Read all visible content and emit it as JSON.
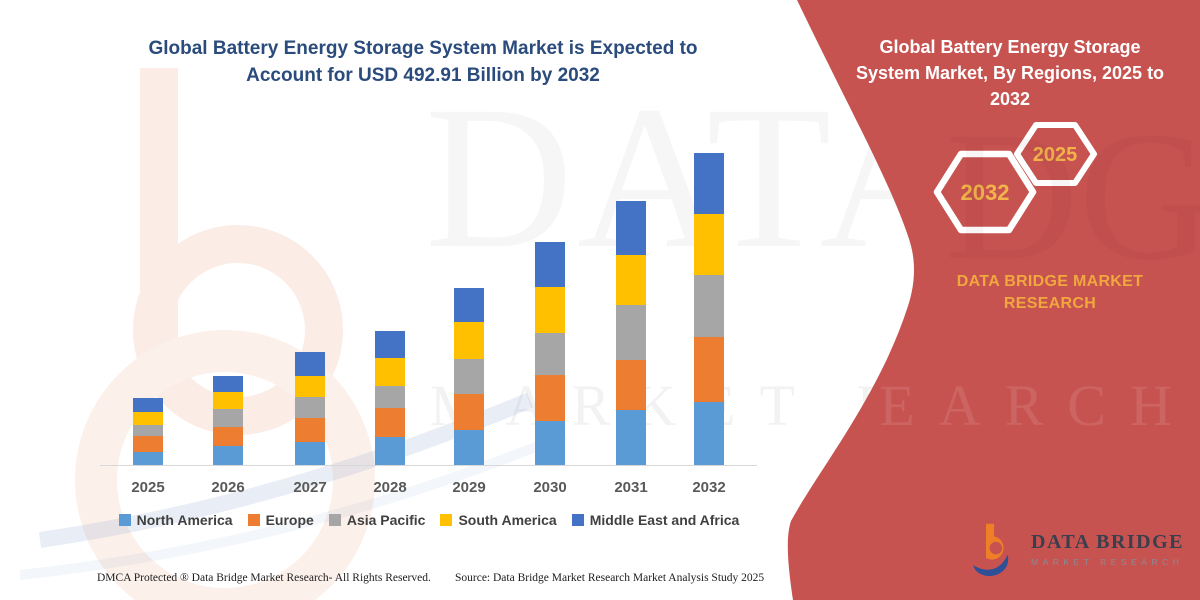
{
  "title": "Global Battery Energy Storage System Market is Expected to Account for USD 492.91 Billion by 2032",
  "side_panel": {
    "title": "Global Battery Energy Storage System Market, By Regions, 2025 to 2032",
    "hexagons": [
      {
        "label": "2032"
      },
      {
        "label": "2025"
      }
    ],
    "brand_text": "DATA BRIDGE MARKET RESEARCH",
    "bg_color": "#C75351",
    "gold_color": "#EFA73E"
  },
  "chart_data": {
    "type": "bar",
    "stacked": true,
    "title": "Global Battery Energy Storage System Market is Expected to Account for USD 492.91 Billion by 2032",
    "unit": "USD Billion",
    "highlighted_value": "USD 492.91 Billion by 2032",
    "categories": [
      "2025",
      "2026",
      "2027",
      "2028",
      "2029",
      "2030",
      "2031",
      "2032"
    ],
    "series": [
      {
        "name": "North America",
        "color": "#5B9BD5",
        "values": [
          21,
          30,
          36,
          44,
          55,
          70,
          87,
          100
        ]
      },
      {
        "name": "Europe",
        "color": "#ED7D31",
        "values": [
          25,
          30,
          38,
          46,
          58,
          73,
          79,
          103
        ]
      },
      {
        "name": "Asia Pacific",
        "color": "#A6A6A6",
        "values": [
          17,
          28,
          33,
          35,
          55,
          66,
          87,
          97
        ]
      },
      {
        "name": "South America",
        "color": "#FFC000",
        "values": [
          21,
          27,
          33,
          44,
          58,
          73,
          79,
          96
        ]
      },
      {
        "name": "Middle East and Africa",
        "color": "#4472C4",
        "values": [
          22,
          25,
          38,
          43,
          54,
          70,
          85,
          96.91
        ]
      }
    ],
    "totals": [
      106,
      140,
      178,
      212,
      280,
      352,
      417,
      492.91
    ],
    "ylim": [
      0,
      493
    ],
    "gridlines": false,
    "legend_position": "bottom"
  },
  "footer": {
    "dmca": "DMCA Protected ® Data Bridge Market Research-  All Rights Reserved.",
    "source": "Source: Data Bridge Market Research  Market Analysis Study 2025"
  },
  "logo": {
    "name": "DATA BRIDGE",
    "tagline": "MARKET RESEARCH"
  },
  "watermark": {
    "top": "DATA BRIDGE",
    "mid_left": "MARKET RE",
    "mid_right": "SEARCH",
    "top_right": "DGE"
  }
}
